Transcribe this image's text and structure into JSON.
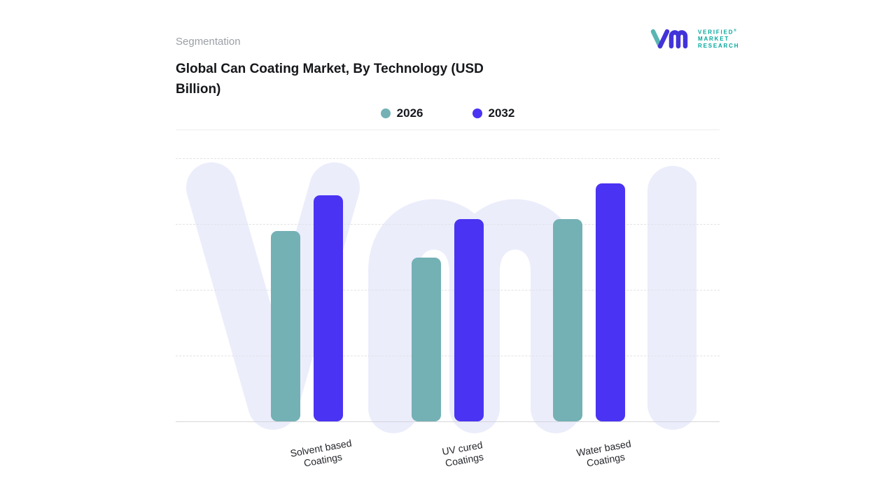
{
  "header": {
    "eyebrow": "Segmentation",
    "logo": {
      "line1": "VERIFIED",
      "registered": "®",
      "line2": "MARKET",
      "line3": "RESEARCH"
    }
  },
  "chart_data": {
    "type": "bar",
    "title": "Global Can Coating Market, By Technology (USD Billion)",
    "categories": [
      "Solvent based Coatings",
      "UV cured Coatings",
      "Water based Coatings"
    ],
    "series": [
      {
        "name": "2026",
        "color": "#74b1b5",
        "values": [
          8.0,
          6.9,
          8.5
        ]
      },
      {
        "name": "2032",
        "color": "#4a33f2",
        "values": [
          9.5,
          8.5,
          10.0
        ]
      }
    ],
    "xlabel": "",
    "ylabel": "",
    "ylim": [
      0,
      11.1
    ],
    "grid": "horizontal-dashed",
    "legend_position": "top-center"
  },
  "colors": {
    "series_2026": "#74b1b5",
    "series_2032": "#4a33f2",
    "watermark": "#ebedfb",
    "logo_purple": "#4233d9",
    "logo_teal": "#00a79d",
    "grid_dashed": "#e2e2e6",
    "baseline": "#d6d6d9"
  }
}
